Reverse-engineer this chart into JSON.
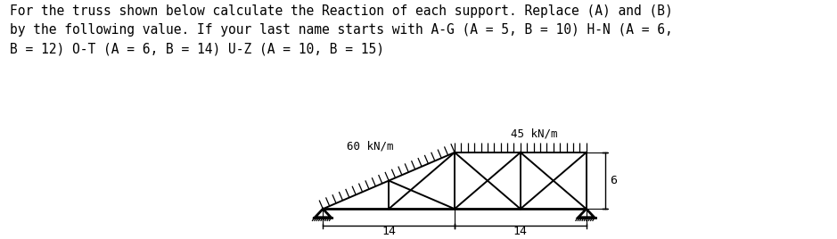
{
  "text_block": "For the truss shown below calculate the Reaction of each support. Replace (A) and (B)\nby the following value. If your last name starts with A-G (A = 5, B = 10) H-N (A = 6,\nB = 12) O-T (A = 6, B = 14) U-Z (A = 10, B = 15)",
  "text_fontsize": 10.5,
  "text_family": "monospace",
  "background_color": "#ffffff",
  "truss_color": "#000000",
  "label_60": "60 kN/m",
  "label_45": "45 kN/m",
  "label_6": "6",
  "label_14a": "14",
  "label_14b": "14",
  "lw_chord": 2.0,
  "lw_web": 1.4,
  "lw_dim": 1.0
}
